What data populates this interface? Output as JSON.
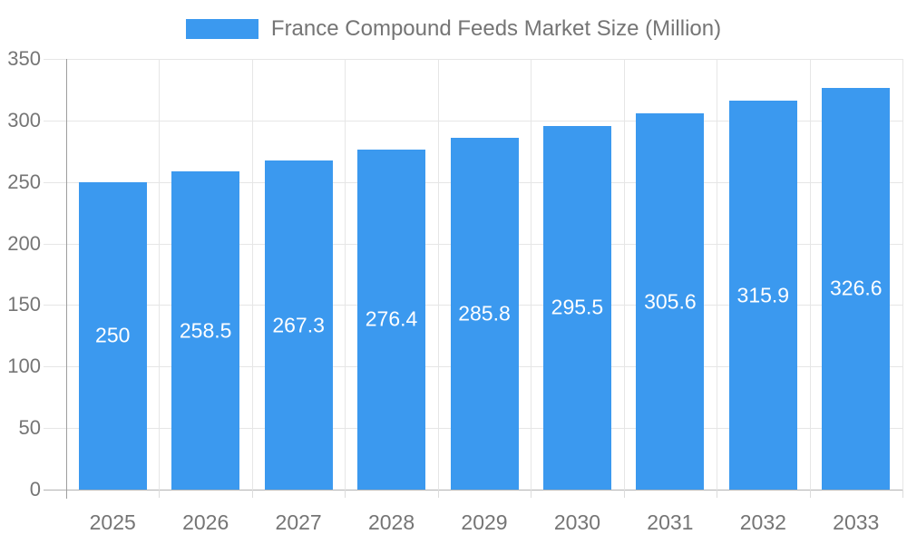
{
  "chart_data": {
    "type": "bar",
    "title": "France Compound Feeds Market Size (Million)",
    "categories": [
      "2025",
      "2026",
      "2027",
      "2028",
      "2029",
      "2030",
      "2031",
      "2032",
      "2033"
    ],
    "values": [
      250,
      258.5,
      267.3,
      276.4,
      285.8,
      295.5,
      305.6,
      315.9,
      326.6
    ],
    "value_labels": [
      "250",
      "258.5",
      "267.3",
      "276.4",
      "285.8",
      "295.5",
      "305.6",
      "315.9",
      "326.6"
    ],
    "xlabel": "",
    "ylabel": "",
    "ylim": [
      0,
      350
    ],
    "y_ticks": [
      0,
      50,
      100,
      150,
      200,
      250,
      300,
      350
    ],
    "grid": true,
    "legend_position": "top-center",
    "colors": {
      "bar": "#3B99EF",
      "value_label": "#FFFFFF",
      "axis_text": "#757575",
      "grid": "#E6E6E6",
      "axis_line": "#9E9E9E",
      "baseline": "#B3B3B3",
      "tick": "#DCDCDC",
      "background": "#FFFFFF"
    }
  }
}
